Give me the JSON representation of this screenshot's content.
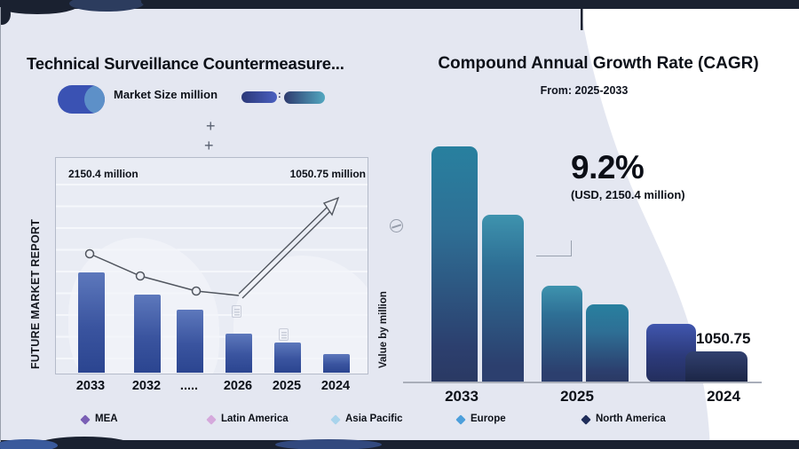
{
  "background": {
    "canvas_color": "#e4e7f1",
    "swoosh_color": "#ffffff",
    "band_color": "#1a2130",
    "plot_bg": "#e9ecf4",
    "left_bar_gradient": [
      "#5d78bc",
      "#2b4590"
    ],
    "right_bar_gradient": [
      "#28809f",
      "#2a3963"
    ]
  },
  "icons": {
    "cylinder_marker": "pill-cylinder",
    "ratio_pills": "two pills separated by colon",
    "ratio_separator": ":",
    "plus_mark": "+",
    "slashed_circle": "⊘",
    "legend_marker": "◆",
    "trend_arrow": "outline arrow up-right",
    "document_watermark": "faint clipboard"
  },
  "left_panel": {
    "title": "Technical Surveillance Countermeasure...",
    "legend_label": "Market Size million",
    "annotation_left": "2150.4 million",
    "annotation_right": "1050.75 million",
    "watermark_vertical": "FUTURE MARKET REPORT",
    "axis_right_label": "Value by million",
    "x_labels": [
      "2033",
      "2032",
      ".....",
      "2026",
      "2025",
      "2024"
    ]
  },
  "right_panel": {
    "title": "Compound Annual Growth Rate (CAGR)",
    "subtitle": "From: 2025-2033",
    "cagr_value": "9.2%",
    "cagr_note": "(USD, 2150.4 million)",
    "bar_annotation": "1050.75",
    "x_labels": [
      "2033",
      "2025",
      "2024"
    ]
  },
  "legend": {
    "items": [
      {
        "label": "MEA",
        "color": "#7a5fb5"
      },
      {
        "label": "Latin America",
        "color": "#d5a9dc"
      },
      {
        "label": "Asia Pacific",
        "color": "#a9d4ec"
      },
      {
        "label": "Europe",
        "color": "#4d9fdb"
      },
      {
        "label": "North America",
        "color": "#1f2d5a"
      }
    ]
  },
  "chart_data": [
    {
      "type": "bar",
      "title": "Technical Surveillance Countermeasure...",
      "series_name": "Market Size million",
      "categories": [
        "2033",
        "2032",
        ".....",
        "2026",
        "2025",
        "2024"
      ],
      "relative_heights": [
        100,
        78,
        63,
        39,
        30,
        19
      ],
      "line_overlay_relative": [
        56,
        46,
        39,
        36
      ],
      "arrow_end_relative": 78,
      "annotations": [
        "2150.4 million",
        "1050.75 million"
      ],
      "ylabel": "Value by million",
      "grid": "horizontal",
      "legend_position": "top-left"
    },
    {
      "type": "bar",
      "title": "Compound Annual Growth Rate (CAGR)",
      "subtitle": "From: 2025-2033",
      "cagr": "9.2%",
      "cagr_basis": "(USD, 2150.4 million)",
      "categories": [
        "2033",
        "2025",
        "2024"
      ],
      "series": [
        {
          "name": "bar-front",
          "relative_heights": [
            100,
            41,
            25
          ]
        },
        {
          "name": "bar-back",
          "relative_heights": [
            71,
            33,
            13
          ]
        }
      ],
      "annotations": [
        {
          "category": "2024",
          "text": "1050.75"
        }
      ],
      "grid": "off",
      "legend_position": "bottom"
    }
  ]
}
